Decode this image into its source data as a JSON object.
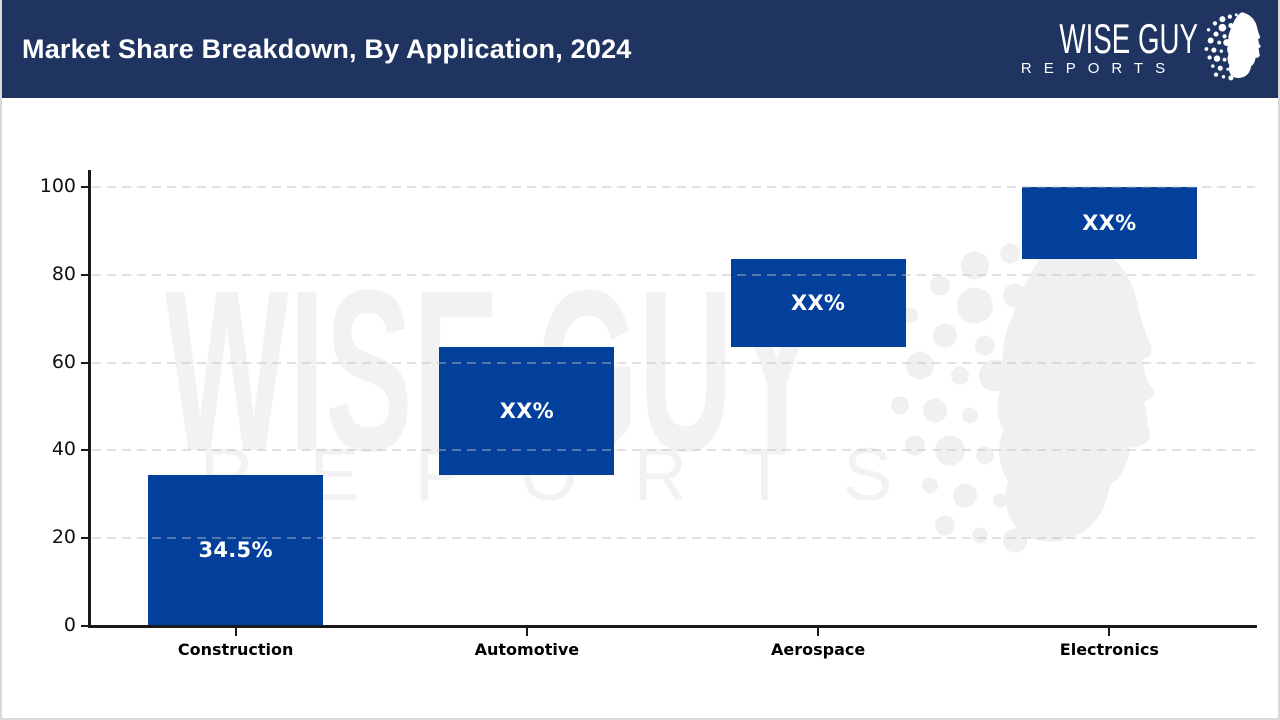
{
  "header": {
    "title": "Market Share Breakdown, By Application, 2024",
    "logo": {
      "wordmark": "WISE GUY",
      "subtext": "REPORTS",
      "icon": "face-profile-dots-icon"
    }
  },
  "watermark": {
    "wordmark": "WISE GUY",
    "subtext": "REPORTS",
    "icon": "face-profile-dots-icon"
  },
  "chart_data": {
    "type": "bar",
    "subtype": "waterfall",
    "title": "Market Share Breakdown, By Application, 2024",
    "categories": [
      "Construction",
      "Automotive",
      "Aerospace",
      "Electronics"
    ],
    "segments": [
      {
        "category": "Construction",
        "start": 0,
        "end": 34.5,
        "label": "34.5%"
      },
      {
        "category": "Automotive",
        "start": 34.5,
        "end": 63.5,
        "label": "XX%"
      },
      {
        "category": "Aerospace",
        "start": 63.5,
        "end": 83.5,
        "label": "XX%"
      },
      {
        "category": "Electronics",
        "start": 83.5,
        "end": 100,
        "label": "XX%"
      }
    ],
    "ylim": [
      0,
      100
    ],
    "yticks": [
      0,
      20,
      40,
      60,
      80,
      100
    ],
    "xlabel": "",
    "ylabel": "",
    "grid": "horizontal-dashed",
    "legend": "none"
  },
  "colors": {
    "header_bg": "#1F3461",
    "bar": "#03409B",
    "bar_label": "#FFFFFF",
    "axis": "#1A1A1A",
    "grid": "#BDBDBD",
    "watermark": "#F2F2F4",
    "page_border": "#D9D9D9",
    "title_text": "#FFFFFF"
  }
}
